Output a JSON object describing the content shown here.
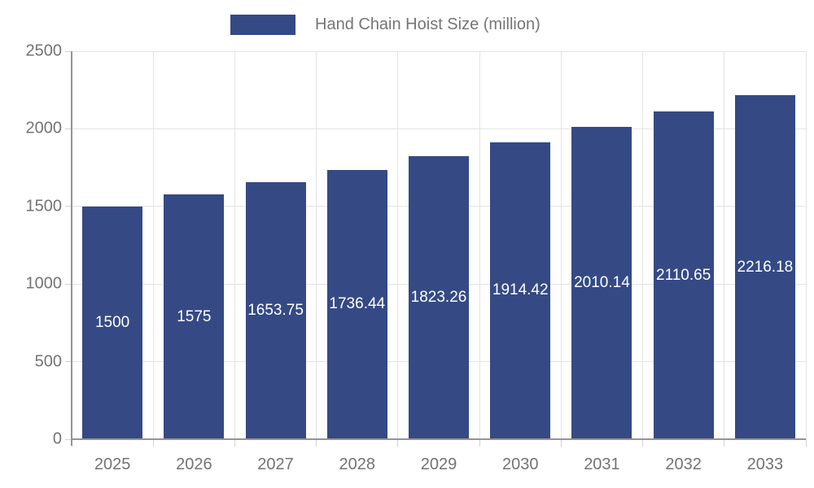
{
  "chart_data": {
    "type": "bar",
    "title": "",
    "legend": "Hand Chain Hoist Size (million)",
    "categories": [
      "2025",
      "2026",
      "2027",
      "2028",
      "2029",
      "2030",
      "2031",
      "2032",
      "2033"
    ],
    "series": [
      {
        "name": "Hand Chain Hoist Size (million)",
        "values": [
          1500,
          1575,
          1653.75,
          1736.44,
          1823.26,
          1914.42,
          2010.14,
          2110.65,
          2216.18
        ],
        "labels": [
          "1500",
          "1575",
          "1653.75",
          "1736.44",
          "1823.26",
          "1914.42",
          "2010.14",
          "2110.65",
          "2216.18"
        ]
      }
    ],
    "xlabel": "",
    "ylabel": "",
    "ylim": [
      0,
      2500
    ],
    "yticks": [
      0,
      500,
      1000,
      1500,
      2000,
      2500
    ],
    "grid": true,
    "value_labels_position": "inside-center",
    "legend_position": "top",
    "colors": {
      "bar": "#354A84",
      "axis_text": "#737373",
      "legend_text": "#757575",
      "grid_line": "#E3E3E3",
      "tick_line": "#D2D2D2",
      "axis_line": "#949494",
      "value_label": "#FFFFFF",
      "background": "#FFFFFF"
    }
  }
}
